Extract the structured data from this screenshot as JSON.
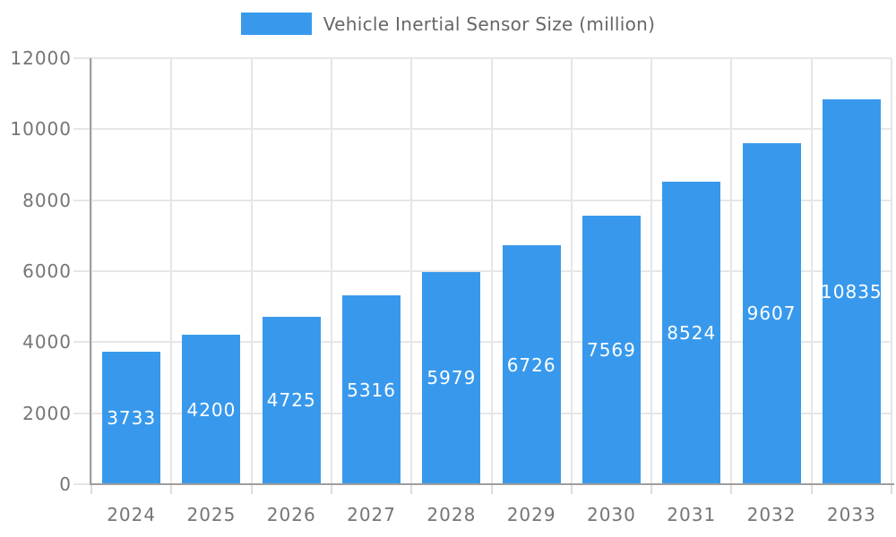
{
  "chart_data": {
    "type": "bar",
    "title": "",
    "legend": {
      "label": "Vehicle Inertial Sensor Size (million)",
      "position": "top"
    },
    "categories": [
      "2024",
      "2025",
      "2026",
      "2027",
      "2028",
      "2029",
      "2030",
      "2031",
      "2032",
      "2033"
    ],
    "series": [
      {
        "name": "Vehicle Inertial Sensor Size (million)",
        "values": [
          3733,
          4200,
          4725,
          5316,
          5979,
          6726,
          7569,
          8524,
          9607,
          10835
        ]
      }
    ],
    "value_labels_shown": true,
    "xlabel": "",
    "ylabel": "",
    "ylim": [
      0,
      12000
    ],
    "ytick_step": 2000,
    "yticks": [
      0,
      2000,
      4000,
      6000,
      8000,
      10000,
      12000
    ],
    "grid": true,
    "colors": {
      "bar": "#3899EC",
      "value_label": "#ffffff",
      "tick_label": "#757575",
      "legend_label": "#666666",
      "axis_line": "#9e9e9e",
      "grid_line": "#e6e6e6",
      "tick_mark": "#dcdcdc",
      "background": "#ffffff"
    }
  }
}
